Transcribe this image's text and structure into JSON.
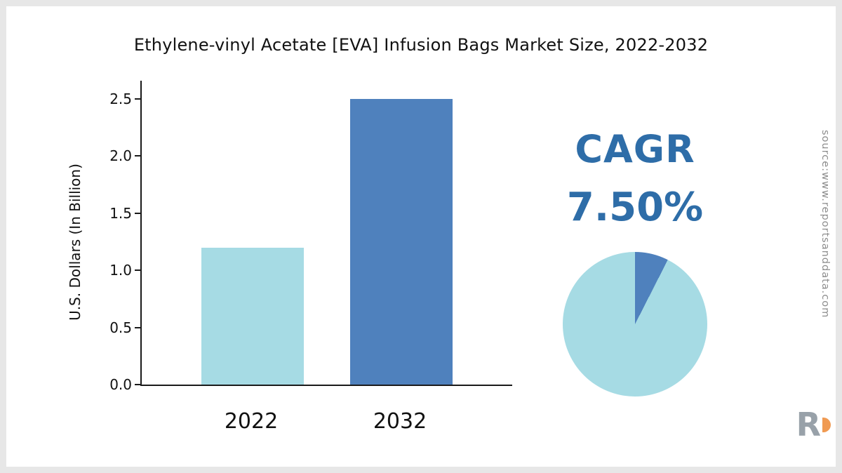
{
  "chart_data": {
    "type": "bar",
    "title": "Ethylene-vinyl Acetate [EVA] Infusion Bags Market Size, 2022-2032",
    "categories": [
      "2022",
      "2032"
    ],
    "values": [
      1.2,
      2.5
    ],
    "bar_colors": [
      "#a6dbe4",
      "#4f81bd"
    ],
    "xlabel": "",
    "ylabel": "U.S. Dollars (In Billion)",
    "ylim": [
      0,
      2.5
    ],
    "ytick_labels": [
      "0.0",
      "0.5",
      "1.0",
      "1.5",
      "2.0",
      "2.5"
    ],
    "grid": false,
    "legend": false
  },
  "cagr": {
    "label": "CAGR",
    "value": "7.50%",
    "percent": 7.5,
    "text_color": "#2e6da8"
  },
  "pie": {
    "slice_percent": 7.5,
    "slice_color": "#4f81bd",
    "base_color": "#a6dbe4"
  },
  "source": {
    "text": "source:www.reportsanddata.com"
  },
  "logo": {
    "letter": "R"
  }
}
